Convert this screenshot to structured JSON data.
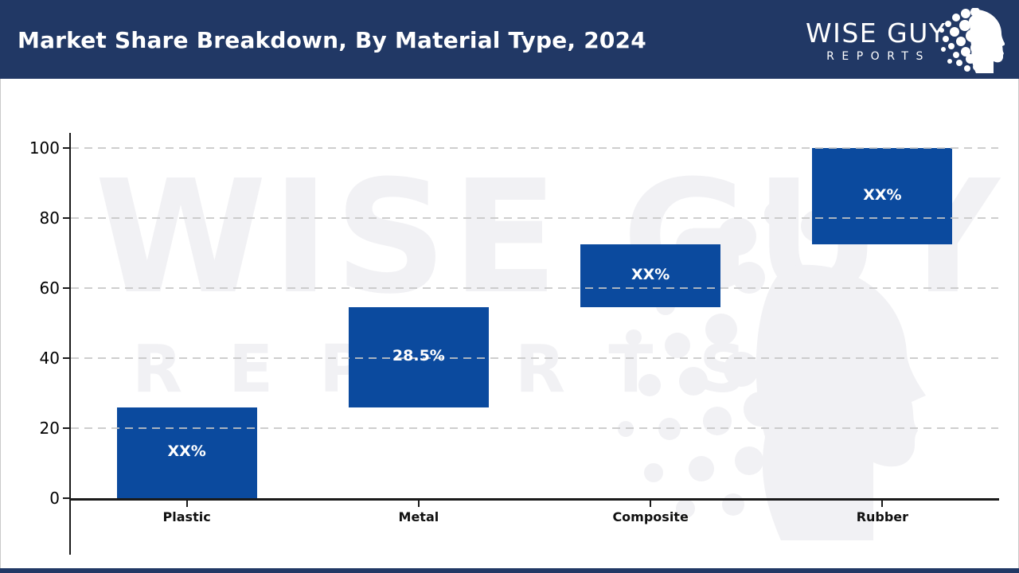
{
  "header": {
    "title": "Market Share Breakdown, By Material Type, 2024",
    "logo": {
      "name": "WISE GUY",
      "sub": "REPORTS"
    }
  },
  "watermark": {
    "name": "WISE GUY",
    "sub": "REPORTS"
  },
  "chart_data": {
    "type": "bar",
    "subtype": "waterfall",
    "title": "Market Share Breakdown, By Material Type, 2024",
    "categories": [
      "Plastic",
      "Metal",
      "Composite",
      "Rubber"
    ],
    "series": [
      {
        "name": "Market share (%)",
        "segments": [
          {
            "category": "Plastic",
            "start": 0,
            "end": 26,
            "value_label": "XX%"
          },
          {
            "category": "Metal",
            "start": 26,
            "end": 54.5,
            "value_label": "28.5%"
          },
          {
            "category": "Composite",
            "start": 54.5,
            "end": 72.5,
            "value_label": "XX%"
          },
          {
            "category": "Rubber",
            "start": 72.5,
            "end": 100,
            "value_label": "XX%"
          }
        ]
      }
    ],
    "yticks": [
      0,
      20,
      40,
      60,
      80,
      100
    ],
    "ylim": [
      0,
      105
    ],
    "xlabel": "",
    "ylabel": "",
    "grid": "horizontal-dashed",
    "legend": "none",
    "colors": {
      "bar": "#0b4a9e",
      "bar_label": "#ffffff",
      "grid": "#d9d9d9",
      "axis": "#1a1a1a",
      "header_bg": "#213865",
      "watermark": "#f1f1f4"
    }
  }
}
